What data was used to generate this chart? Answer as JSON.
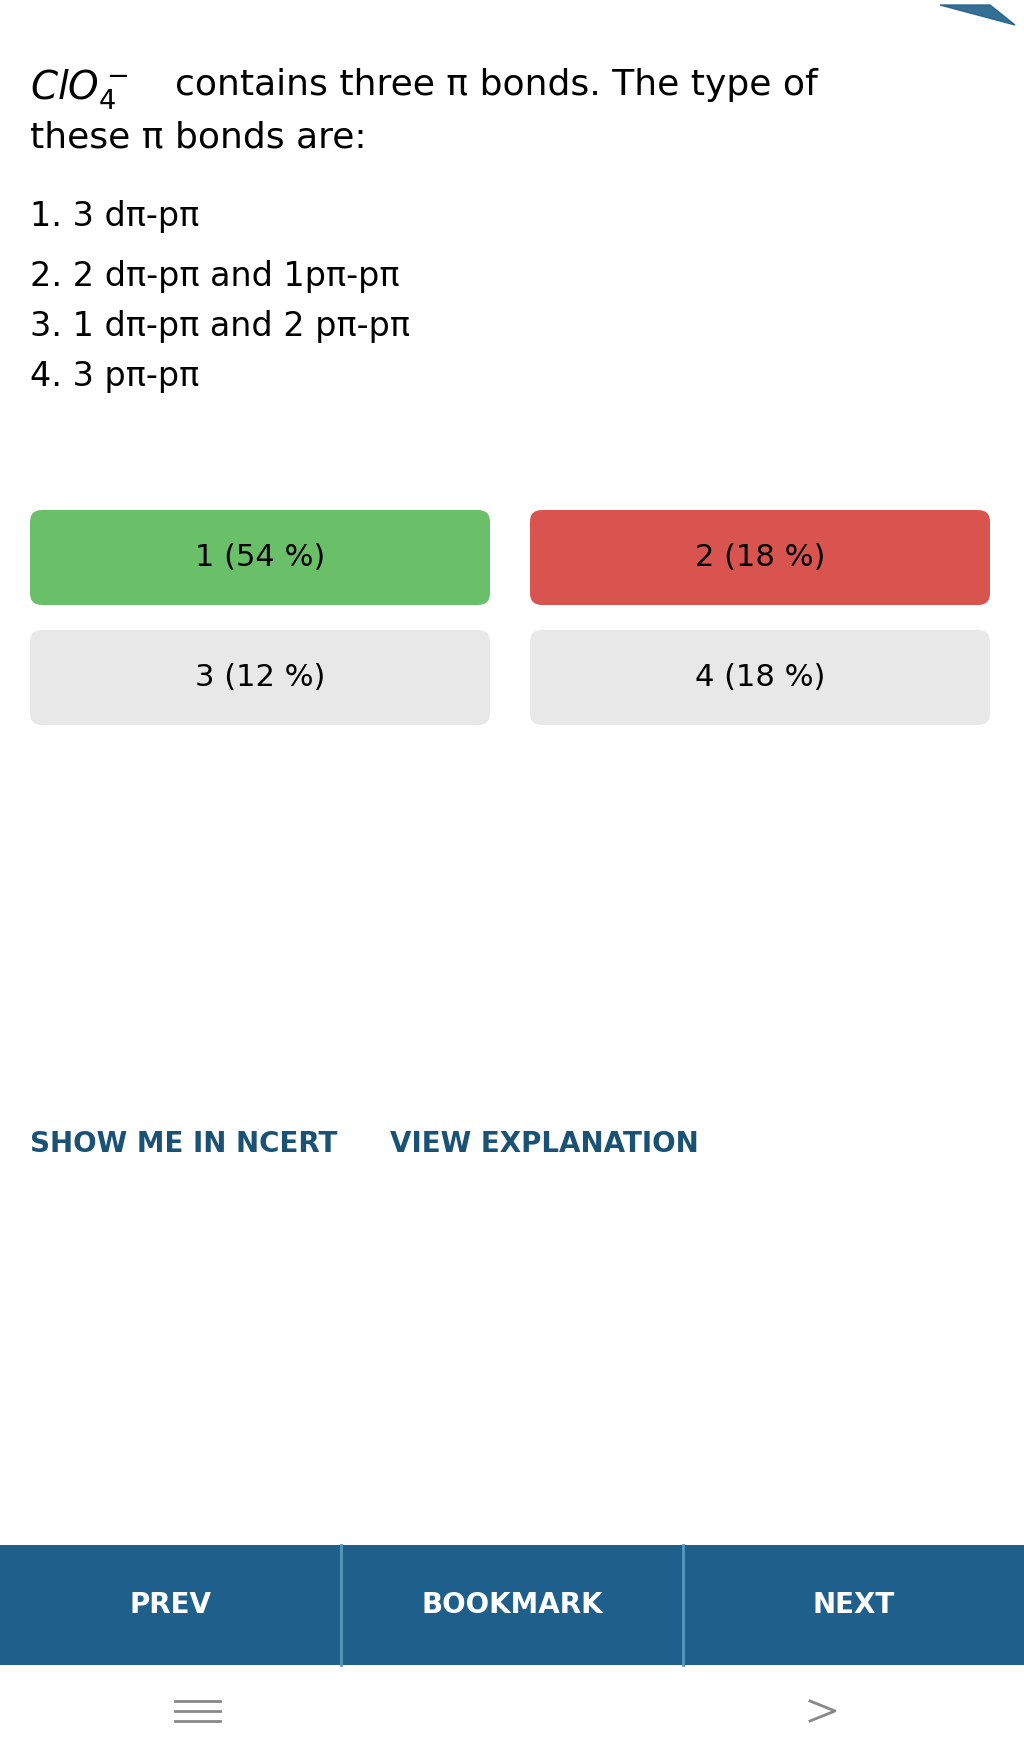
{
  "bg_color": "#ffffff",
  "title_italic": "ClO₄⁻",
  "title_text": " contains three π bonds. The type of\nthese π bonds are:",
  "options": [
    "1. 3 dπ-pπ",
    "2. 2 dπ-pπ and 1pπ-pπ",
    "3. 1 dπ-pπ and 2 pπ-pπ",
    "4. 3 pπ-pπ"
  ],
  "buttons": [
    {
      "label": "1 (54 %)",
      "color": "#6abf69",
      "text_color": "#000000"
    },
    {
      "label": "2 (18 %)",
      "color": "#d9534f",
      "text_color": "#000000"
    },
    {
      "label": "3 (12 %)",
      "color": "#e8e8e8",
      "text_color": "#000000"
    },
    {
      "label": "4 (18 %)",
      "color": "#e8e8e8",
      "text_color": "#000000"
    }
  ],
  "link_color": "#1a5276",
  "link1": "SHOW ME IN NCERT",
  "link2": "VIEW EXPLANATION",
  "nav_bg": "#1f5f8b",
  "nav_buttons": [
    "PREV",
    "BOOKMARK",
    "NEXT"
  ],
  "nav_text_color": "#ffffff",
  "bottom_bar_color": "#cccccc",
  "fig_width": 10.24,
  "fig_height": 17.37,
  "dpi": 100
}
